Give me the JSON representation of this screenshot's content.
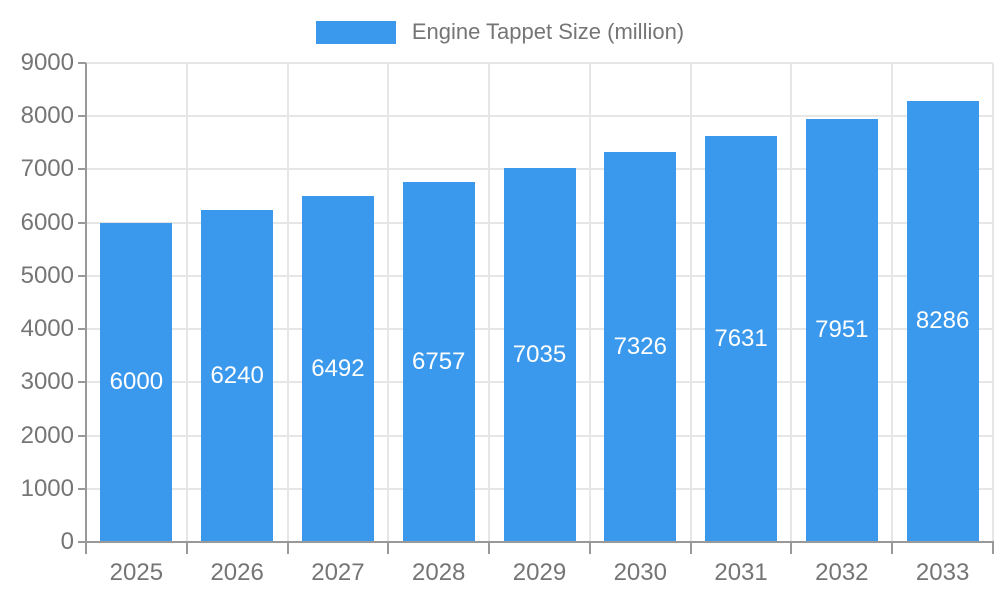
{
  "legend": {
    "label": "Engine Tappet Size (million)"
  },
  "colors": {
    "bar": "#3a99ec",
    "grid": "#e6e6e6",
    "axis": "#999999",
    "tick_text": "#757575",
    "bar_label_text": "#ffffff"
  },
  "chart_data": {
    "type": "bar",
    "title": "Engine Tappet Size (million)",
    "categories": [
      "2025",
      "2026",
      "2027",
      "2028",
      "2029",
      "2030",
      "2031",
      "2032",
      "2033"
    ],
    "values": [
      6000,
      6240,
      6492,
      6757,
      7035,
      7326,
      7631,
      7951,
      8286
    ],
    "xlabel": "",
    "ylabel": "",
    "ylim": [
      0,
      9000
    ],
    "ytick_step": 1000,
    "grid": true,
    "legend_position": "top",
    "bar_value_labels": true
  }
}
